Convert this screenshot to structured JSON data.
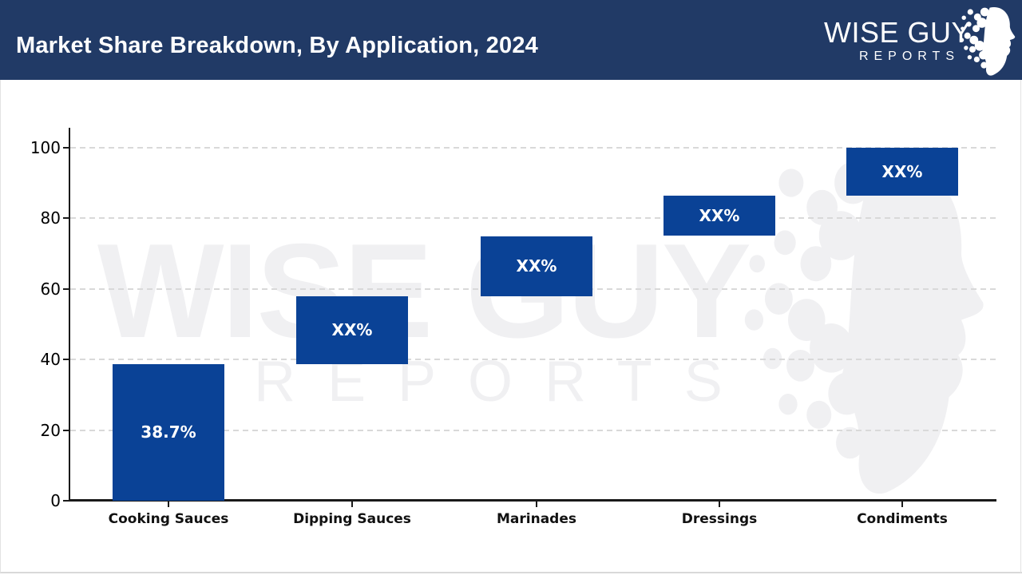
{
  "header": {
    "title": "Market Share Breakdown, By Application, 2024",
    "logo": {
      "primary": "WISE GUY",
      "secondary": "REPORTS"
    }
  },
  "watermark": {
    "line1": "WISE GUY",
    "line2": "REPORTS"
  },
  "chart_data": {
    "type": "bar",
    "variant": "waterfall",
    "title": "Market Share Breakdown, By Application, 2024",
    "categories": [
      "Cooking Sauces",
      "Dipping Sauces",
      "Marinades",
      "Dressings",
      "Condiments"
    ],
    "series": [
      {
        "name": "Market share (%)",
        "segments": [
          [
            0,
            38.7
          ],
          [
            38.7,
            58
          ],
          [
            58,
            75
          ],
          [
            75,
            86.4
          ],
          [
            86.4,
            100
          ]
        ],
        "labels": [
          "38.7%",
          "XX%",
          "XX%",
          "XX%",
          "XX%"
        ]
      }
    ],
    "xlabel": "",
    "ylabel": "",
    "ylim": [
      0,
      100
    ],
    "yticks": [
      0,
      20,
      40,
      60,
      80,
      100
    ],
    "grid": "horizontal-dashed",
    "legend": "none",
    "colors": {
      "bar": "#0a4296",
      "bar_label": "#ffffff",
      "axis": "#1a1a1a",
      "grid": "#d9d9d9",
      "header_bg": "#213a66",
      "header_text": "#ffffff",
      "watermark": "#f0f0f2"
    }
  }
}
